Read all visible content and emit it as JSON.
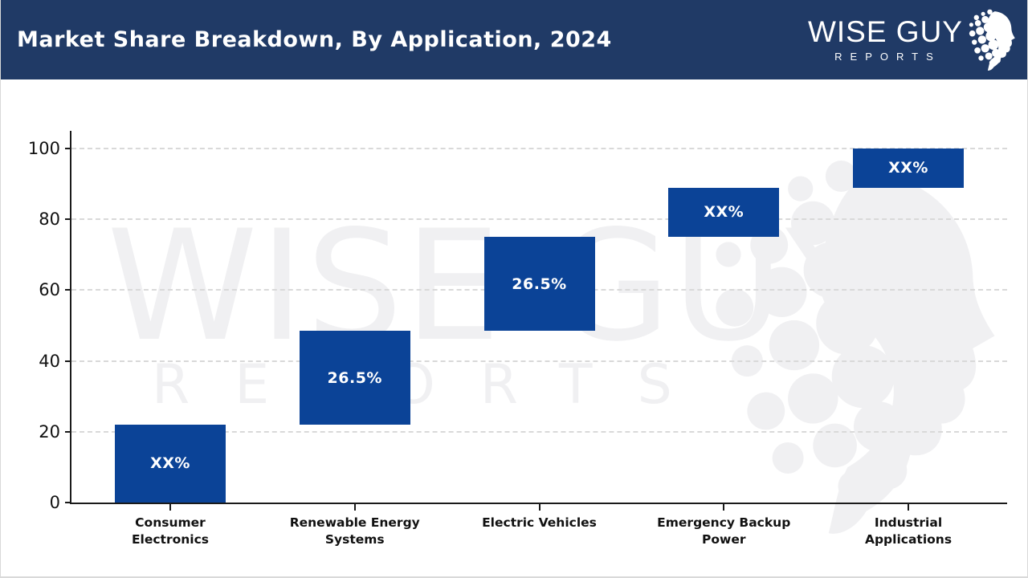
{
  "header": {
    "title": "Market Share Breakdown, By Application, 2024",
    "bg_color": "#203a66",
    "brand": {
      "name": "WISE GUY",
      "tagline": "REPORTS",
      "face_icon": "dotted-face-profile-icon"
    }
  },
  "watermark": {
    "brand": "WISE GUY",
    "tagline": "REPORTS",
    "face_icon": "dotted-face-profile-icon"
  },
  "chart_data": {
    "type": "bar",
    "subtype": "floating-waterfall",
    "title": "Market Share Breakdown, By Application, 2024",
    "categories": [
      "Consumer Electronics",
      "Renewable Energy Systems",
      "Electric Vehicles",
      "Emergency Backup Power",
      "Industrial Applications"
    ],
    "category_lines": [
      [
        "Consumer",
        "Electronics"
      ],
      [
        "Renewable Energy",
        "Systems"
      ],
      [
        "Electric Vehicles"
      ],
      [
        "Emergency Backup",
        "Power"
      ],
      [
        "Industrial",
        "Applications"
      ]
    ],
    "segments": [
      {
        "category": "Consumer Electronics",
        "label": "XX%",
        "start": 0,
        "end": 22
      },
      {
        "category": "Renewable Energy Systems",
        "label": "26.5%",
        "start": 22,
        "end": 48.5
      },
      {
        "category": "Electric Vehicles",
        "label": "26.5%",
        "start": 48.5,
        "end": 75
      },
      {
        "category": "Emergency Backup Power",
        "label": "XX%",
        "start": 75,
        "end": 89
      },
      {
        "category": "Industrial Applications",
        "label": "XX%",
        "start": 89,
        "end": 100
      }
    ],
    "ylim": [
      0,
      105
    ],
    "yticks": [
      0,
      20,
      40,
      60,
      80,
      100
    ],
    "xlabel": "",
    "ylabel": "",
    "bar_color": "#0b4397",
    "grid": true,
    "grid_color": "#d9d9d9",
    "axis_color": "#1a1a1a",
    "legend": "none"
  }
}
